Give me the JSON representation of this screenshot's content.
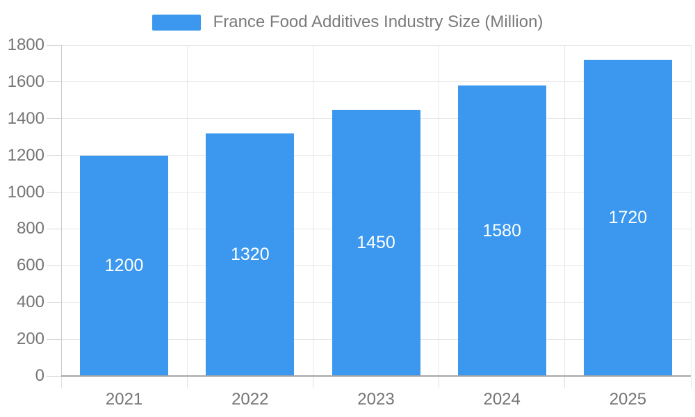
{
  "chart_data": {
    "type": "bar",
    "title": "France Food Additives Industry Size (Million)",
    "legend_entries": [
      "France Food Additives Industry Size (Million)"
    ],
    "legend_position": "top-center",
    "categories": [
      "2021",
      "2022",
      "2023",
      "2024",
      "2025"
    ],
    "values": [
      1200,
      1320,
      1450,
      1580,
      1720
    ],
    "value_labels": [
      "1200",
      "1320",
      "1450",
      "1580",
      "1720"
    ],
    "value_label_position": "inside-center",
    "xlabel": "",
    "ylabel": "",
    "ylim": [
      0,
      1800
    ],
    "ytick_step": 200,
    "yticks": [
      0,
      200,
      400,
      600,
      800,
      1000,
      1200,
      1400,
      1600,
      1800
    ],
    "grid": "horizontal and vertical light gray lines",
    "colors": {
      "bar": "#3B98EE",
      "bar_value_label": "#FFFFFF",
      "axis_text": "#757575",
      "legend_text": "#7B7B7B",
      "gridline": "#E8E8E8",
      "y_axis_line": "#CCCCCC",
      "x_axis_line": "#A6A6A6",
      "background": "#FFFFFF"
    }
  }
}
